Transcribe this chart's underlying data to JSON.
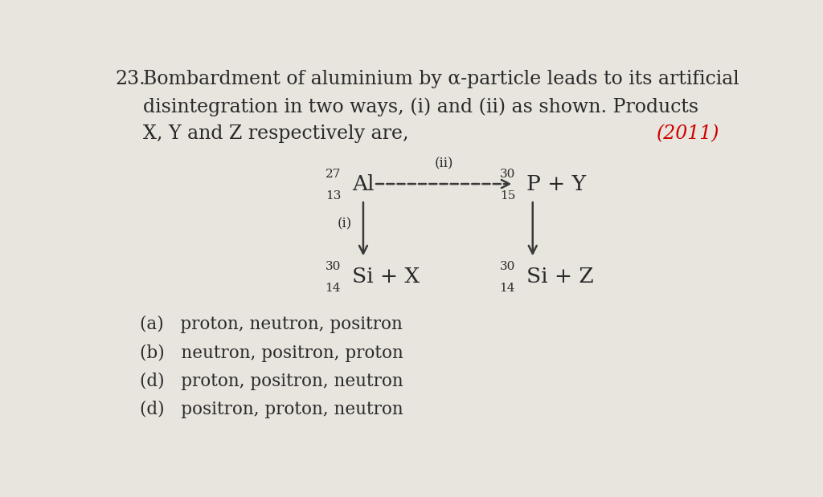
{
  "bg_color": "#e8e4de",
  "text_color": "#2a2a2a",
  "red_color": "#cc0000",
  "arrow_color": "#3a3a3a",
  "question_number": "23.",
  "question_text_line1": "Bombardment of aluminium by α-particle leads to its artificial",
  "question_text_line2": "disintegration in two ways, (i) and (ii) as shown. Products",
  "question_text_line3": "X, Y and Z respectively are,",
  "year": "(2011)",
  "options": [
    "(a)   proton, neutron, positron",
    "(b)   neutron, positron, proton",
    "(d)   proton, positron, neutron"
  ],
  "options_partial": "(d)   positron, proton, n...",
  "fig_width": 10.24,
  "fig_height": 6.19,
  "dpi": 100,
  "al_sup": "27",
  "al_sub": "13",
  "p_sup": "30",
  "p_sub": "15",
  "si1_sup": "30",
  "si1_sub": "14",
  "si2_sup": "30",
  "si2_sub": "14"
}
